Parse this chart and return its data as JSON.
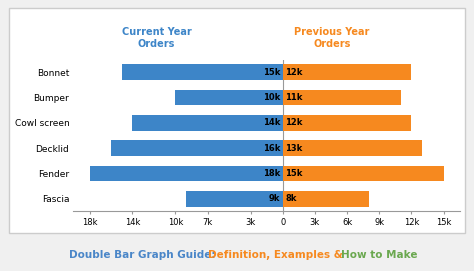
{
  "categories": [
    "Fascia",
    "Fender",
    "Decklid",
    "Cowl screen",
    "Bumper",
    "Bonnet"
  ],
  "current_year": [
    9,
    18,
    16,
    14,
    10,
    15
  ],
  "previous_year": [
    8,
    15,
    13,
    12,
    11,
    12
  ],
  "blue_color": "#3d85c8",
  "orange_color": "#f6891f",
  "tick_labels": [
    "18k",
    "14k",
    "10k",
    "7k",
    "3k",
    "0",
    "3k",
    "6k",
    "9k",
    "12k",
    "15k"
  ],
  "tick_values": [
    -18,
    -14,
    -10,
    -7,
    -3,
    0,
    3,
    6,
    9,
    12,
    15
  ],
  "current_year_label": "Current Year\nOrders",
  "previous_year_label": "Previous Year\nOrders",
  "subtitle_blue": "Double Bar Graph Guide: ",
  "subtitle_orange": "Definition, Examples & ",
  "subtitle_green": "How to Make",
  "subtitle_blue_color": "#4a86c8",
  "subtitle_orange_color": "#f6891f",
  "subtitle_green_color": "#6aa84f",
  "bar_height": 0.62,
  "xlim": [
    -19.5,
    16.5
  ],
  "outer_bg": "#f0f0f0",
  "inner_bg": "#ffffff",
  "border_color": "#cccccc"
}
